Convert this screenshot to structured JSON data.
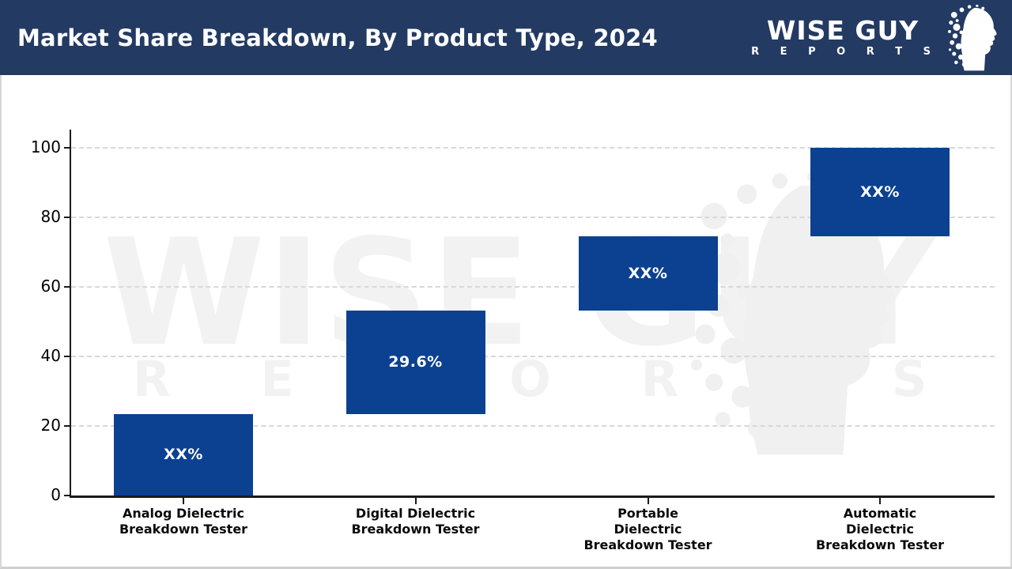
{
  "header": {
    "title": "Market Share Breakdown, By Product Type, 2024",
    "logo": {
      "line1": "WISE GUY",
      "line2": "R E P O R T S"
    }
  },
  "watermark": {
    "line1": "WISE GUY",
    "line2": "R E P O R T S"
  },
  "colors": {
    "header_navy": "#233a63",
    "bar_blue": "#0b4190",
    "grid_gray": "#d8d8d8",
    "axis_black": "#1a1a1a",
    "watermark_gray": "#f3f2f2"
  },
  "chart_data": {
    "type": "bar",
    "subtype": "waterfall",
    "title": "Market Share Breakdown, By Product Type, 2024",
    "categories": [
      "Analog Dielectric Breakdown Tester",
      "Digital Dielectric Breakdown Tester",
      "Portable Dielectric Breakdown Tester",
      "Automatic Dielectric Breakdown Tester"
    ],
    "bars": [
      {
        "category_lines": [
          "Analog Dielectric",
          "Breakdown Tester"
        ],
        "start": 0,
        "end": 23.5,
        "value": 23.5,
        "label": "XX%"
      },
      {
        "category_lines": [
          "Digital Dielectric",
          "Breakdown Tester"
        ],
        "start": 23.5,
        "end": 53.1,
        "value": 29.6,
        "label": "29.6%"
      },
      {
        "category_lines": [
          "Portable",
          "Dielectric",
          "Breakdown Tester"
        ],
        "start": 53.1,
        "end": 74.5,
        "value": 21.4,
        "label": "XX%"
      },
      {
        "category_lines": [
          "Automatic",
          "Dielectric",
          "Breakdown Tester"
        ],
        "start": 74.5,
        "end": 100,
        "value": 25.5,
        "label": "XX%"
      }
    ],
    "xlabel": "",
    "ylabel": "",
    "ylim": [
      0,
      105
    ],
    "yticks": [
      0,
      20,
      40,
      60,
      80,
      100
    ],
    "grid": "horizontal dashed",
    "legend": null,
    "bar_color": "#0b4190"
  }
}
